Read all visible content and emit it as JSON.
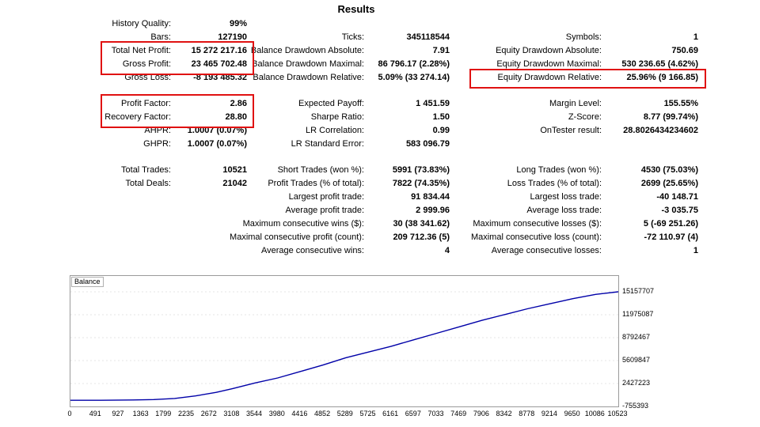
{
  "title": "Results",
  "colors": {
    "annotation_red": "#e01111",
    "curve_blue": "#0000a8"
  },
  "stats": {
    "left": [
      {
        "label": "History Quality:",
        "value": "99%"
      },
      {
        "label": "Bars:",
        "value": "127190"
      },
      {
        "label": "Total Net Profit:",
        "value": "15 272 217.16"
      },
      {
        "label": "Gross Profit:",
        "value": "23 465 702.48"
      },
      {
        "label": "Gross Loss:",
        "value": "-8 193 485.32"
      },
      {
        "label": "Profit Factor:",
        "value": "2.86",
        "gap": true
      },
      {
        "label": "Recovery Factor:",
        "value": "28.80"
      },
      {
        "label": "AHPR:",
        "value": "1.0007 (0.07%)"
      },
      {
        "label": "GHPR:",
        "value": "1.0007 (0.07%)"
      },
      {
        "label": "Total Trades:",
        "value": "10521",
        "gap": true
      },
      {
        "label": "Total Deals:",
        "value": "21042"
      }
    ],
    "mid": [
      {
        "label": "",
        "value": ""
      },
      {
        "label": "Ticks:",
        "value": "345118544"
      },
      {
        "label": "Balance Drawdown Absolute:",
        "value": "7.91"
      },
      {
        "label": "Balance Drawdown Maximal:",
        "value": "86 796.17 (2.28%)"
      },
      {
        "label": "Balance Drawdown Relative:",
        "value": "5.09% (33 274.14)"
      },
      {
        "label": "Expected Payoff:",
        "value": "1 451.59",
        "gap": true
      },
      {
        "label": "Sharpe Ratio:",
        "value": "1.50"
      },
      {
        "label": "LR Correlation:",
        "value": "0.99"
      },
      {
        "label": "LR Standard Error:",
        "value": "583 096.79"
      },
      {
        "label": "Short Trades (won %):",
        "value": "5991 (73.83%)",
        "gap": true
      },
      {
        "label": "Profit Trades (% of total):",
        "value": "7822 (74.35%)"
      },
      {
        "label": "Largest profit trade:",
        "value": "91 834.44"
      },
      {
        "label": "Average profit trade:",
        "value": "2 999.96"
      },
      {
        "label": "Maximum consecutive wins ($):",
        "value": "30 (38 341.62)"
      },
      {
        "label": "Maximal consecutive profit (count):",
        "value": "209 712.36 (5)"
      },
      {
        "label": "Average consecutive wins:",
        "value": "4"
      }
    ],
    "right": [
      {
        "label": "",
        "value": ""
      },
      {
        "label": "Symbols:",
        "value": "1"
      },
      {
        "label": "Equity Drawdown Absolute:",
        "value": "750.69"
      },
      {
        "label": "Equity Drawdown Maximal:",
        "value": "530 236.65 (4.62%)"
      },
      {
        "label": "Equity Drawdown Relative:",
        "value": "25.96% (9 166.85)"
      },
      {
        "label": "Margin Level:",
        "value": "155.55%",
        "gap": true
      },
      {
        "label": "Z-Score:",
        "value": "8.77 (99.74%)"
      },
      {
        "label": "OnTester result:",
        "value": "28.8026434234602"
      },
      {
        "label": "",
        "value": ""
      },
      {
        "label": "Long Trades (won %):",
        "value": "4530 (75.03%)",
        "gap": true
      },
      {
        "label": "Loss Trades (% of total):",
        "value": "2699 (25.65%)"
      },
      {
        "label": "Largest loss trade:",
        "value": "-40 148.71"
      },
      {
        "label": "Average loss trade:",
        "value": "-3 035.75"
      },
      {
        "label": "Maximum consecutive losses ($):",
        "value": "5 (-69 251.26)"
      },
      {
        "label": "Maximal consecutive loss (count):",
        "value": "-72 110.97 (4)"
      },
      {
        "label": "Average consecutive losses:",
        "value": "1"
      }
    ]
  },
  "chart_data": {
    "type": "line",
    "title": "Balance",
    "line_color": "#0000a8",
    "x_max": 10523,
    "x_ticks": [
      0,
      491,
      927,
      1363,
      1799,
      2235,
      2672,
      3108,
      3544,
      3980,
      4416,
      4852,
      5289,
      5725,
      6161,
      6597,
      7033,
      7469,
      7906,
      8342,
      8778,
      9214,
      9650,
      10086,
      10523
    ],
    "y_ticks": [
      15157707,
      11975087,
      8792467,
      5609847,
      2427223,
      -755393
    ],
    "ylim": [
      -755393,
      15157707
    ],
    "grid": "horizontal-dotted",
    "legend_position": "top-left",
    "series": [
      {
        "name": "Balance",
        "points": [
          [
            0,
            100000
          ],
          [
            400,
            100000
          ],
          [
            800,
            110000
          ],
          [
            1200,
            140000
          ],
          [
            1600,
            200000
          ],
          [
            2000,
            350000
          ],
          [
            2400,
            700000
          ],
          [
            2800,
            1200000
          ],
          [
            3108,
            1700000
          ],
          [
            3544,
            2500000
          ],
          [
            3980,
            3200000
          ],
          [
            4416,
            4100000
          ],
          [
            4852,
            5000000
          ],
          [
            5289,
            6000000
          ],
          [
            5725,
            6800000
          ],
          [
            6161,
            7600000
          ],
          [
            6597,
            8500000
          ],
          [
            7033,
            9400000
          ],
          [
            7469,
            10300000
          ],
          [
            7906,
            11200000
          ],
          [
            8342,
            12000000
          ],
          [
            8778,
            12800000
          ],
          [
            9214,
            13500000
          ],
          [
            9650,
            14200000
          ],
          [
            10086,
            14800000
          ],
          [
            10523,
            15157707
          ]
        ]
      }
    ]
  }
}
